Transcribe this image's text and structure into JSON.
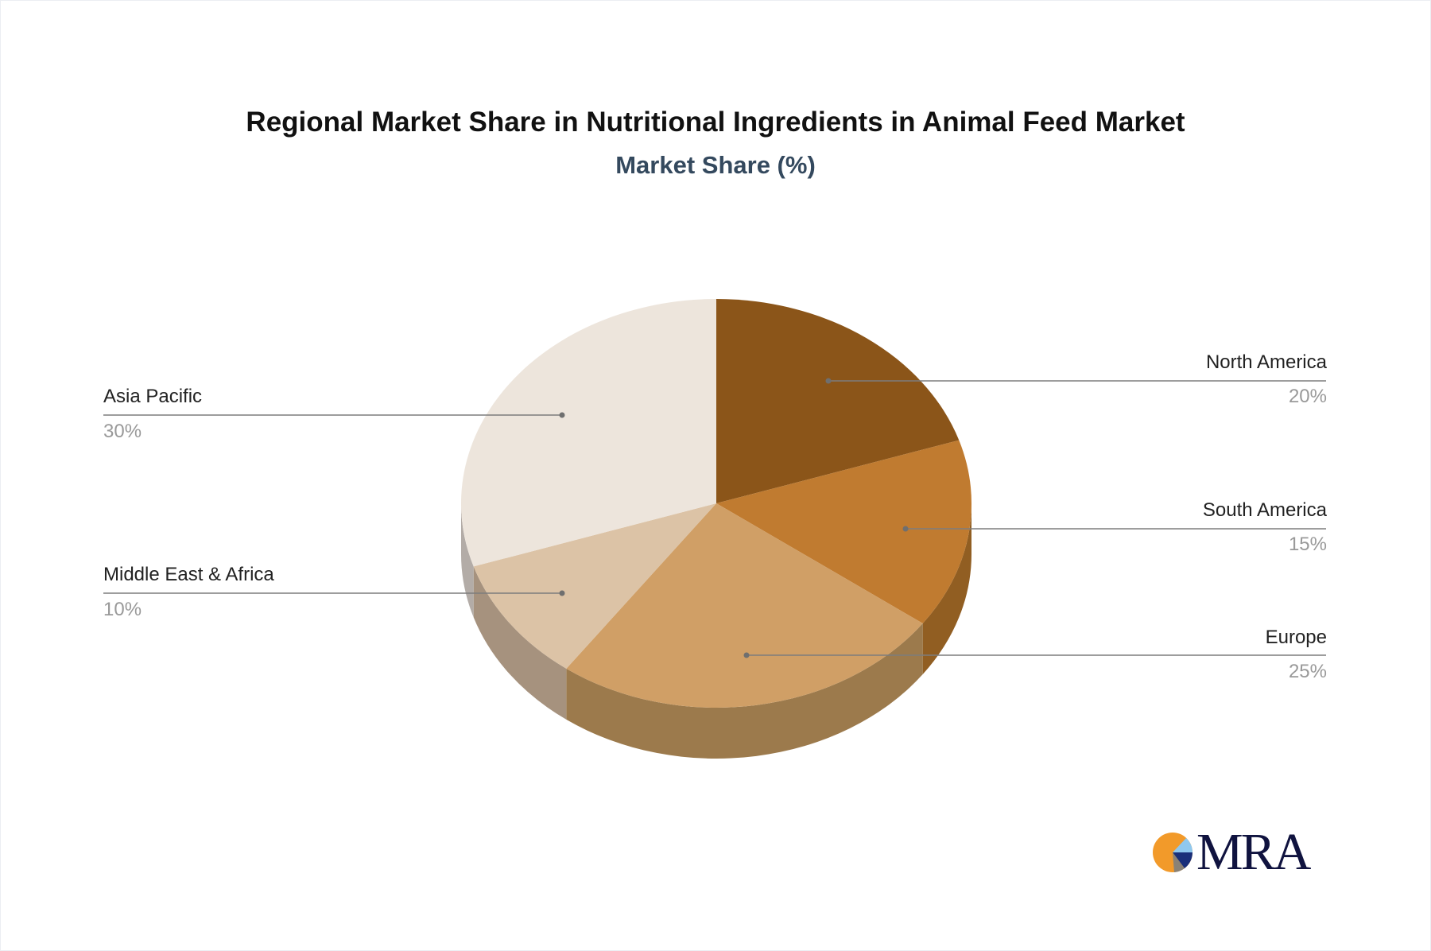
{
  "chart_data": {
    "type": "pie",
    "title": "Regional Market Share in Nutritional Ingredients in Animal Feed Market",
    "subtitle": "Market Share (%)",
    "slices": [
      {
        "label": "North America",
        "value": 20,
        "display": "20%",
        "color": "#8B5519",
        "side_color": "#7a4a16"
      },
      {
        "label": "South America",
        "value": 15,
        "display": "15%",
        "color": "#C07B30",
        "side_color": "#915E22"
      },
      {
        "label": "Europe",
        "value": 25,
        "display": "25%",
        "color": "#D09F66",
        "side_color": "#9C7A4C"
      },
      {
        "label": "Middle East & Africa",
        "value": 10,
        "display": "10%",
        "color": "#DCC3A6",
        "side_color": "#A6927E"
      },
      {
        "label": "Asia Pacific",
        "value": 30,
        "display": "30%",
        "color": "#EDE5DC",
        "side_color": "#B3ACA7"
      }
    ],
    "style": "3d"
  },
  "logo": {
    "text": "MRA"
  }
}
